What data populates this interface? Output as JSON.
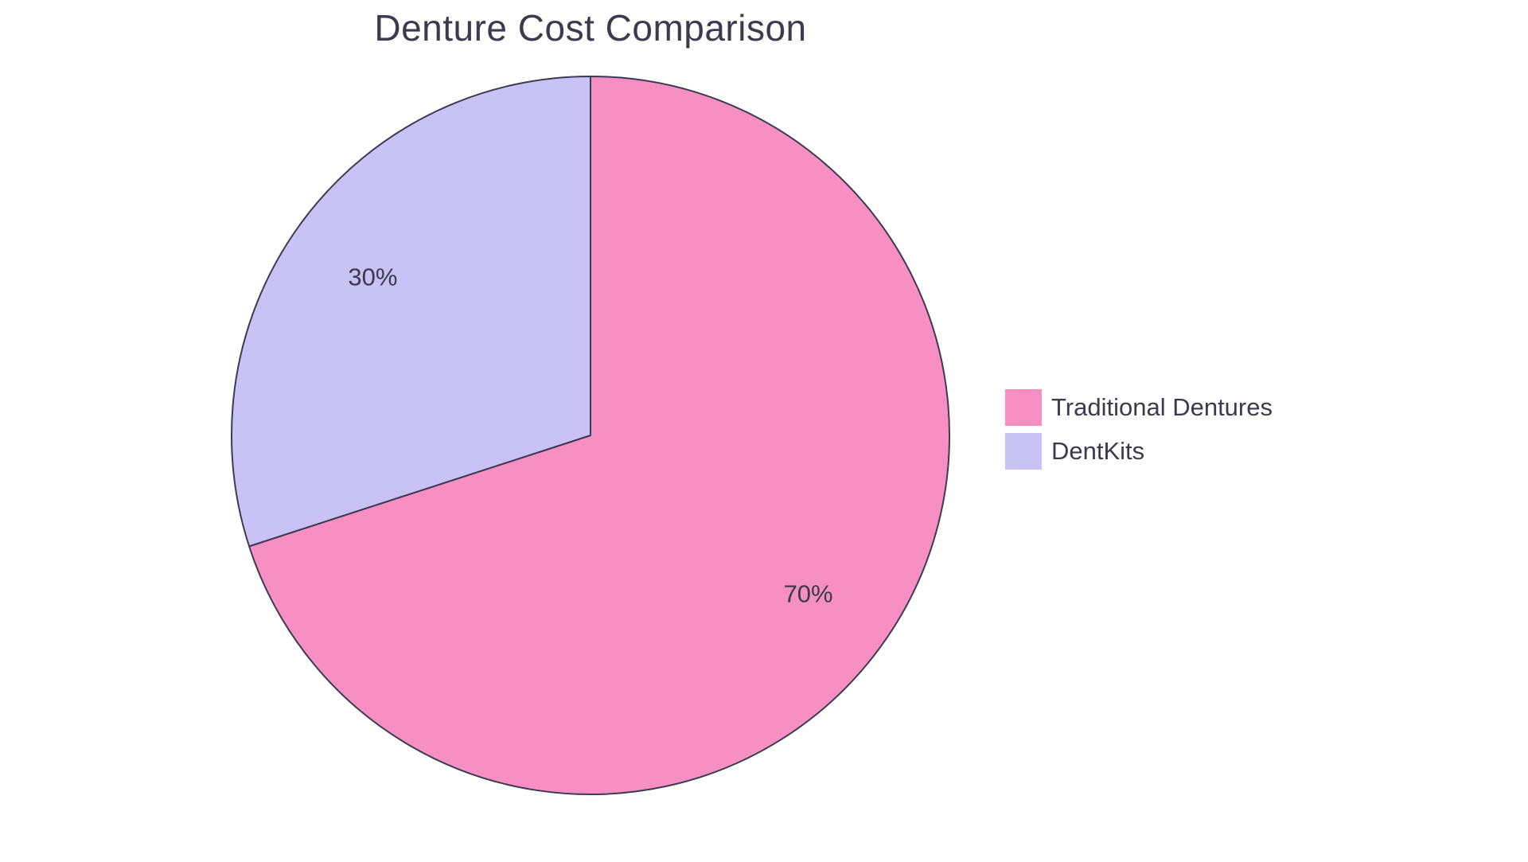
{
  "chart_data": {
    "type": "pie",
    "title": "Denture Cost Comparison",
    "labels": [
      "Traditional Dentures",
      "DentKits"
    ],
    "values": [
      70,
      30
    ],
    "slice_labels": [
      "70%",
      "30%"
    ],
    "colors": [
      "#f78fc2",
      "#c9c3f5"
    ],
    "outline_color": "#3b3b54",
    "text_color": "#3b3b4d",
    "background_color": "#ffffff",
    "legend_position": "right",
    "start_angle_deg": 0,
    "direction": "clockwise"
  }
}
